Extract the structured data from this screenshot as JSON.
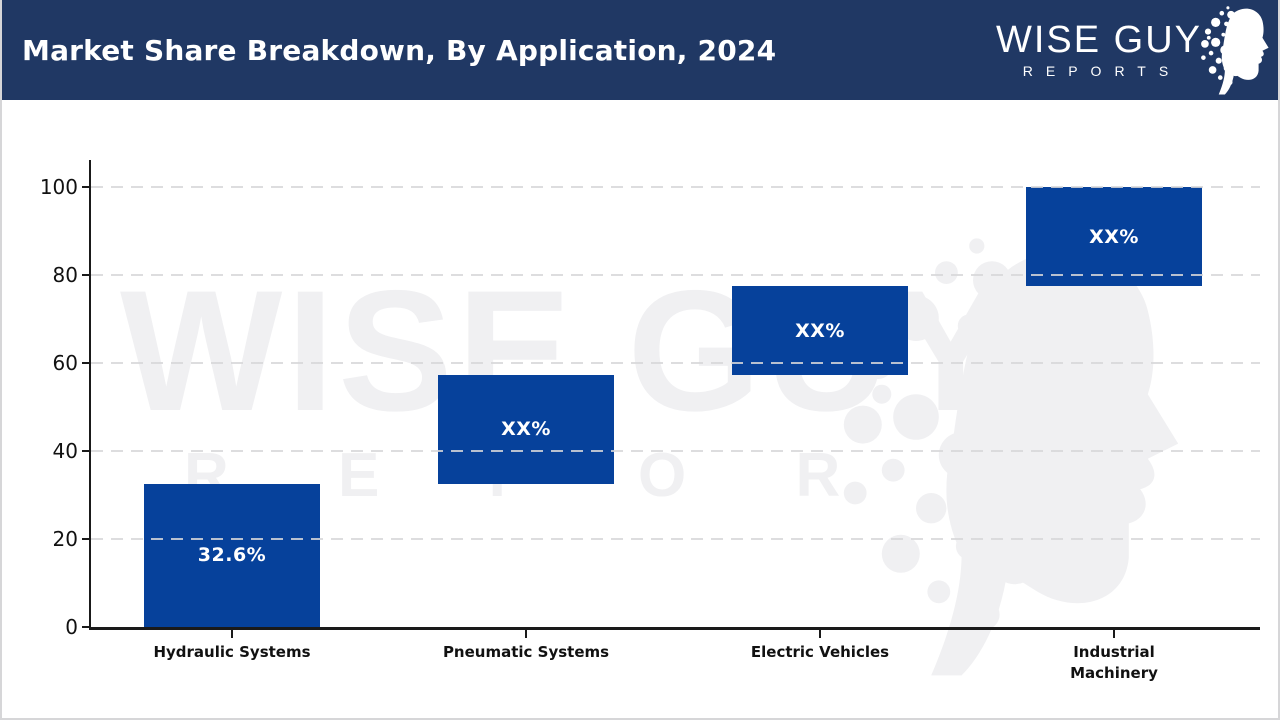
{
  "header": {
    "title": "Market Share Breakdown, By Application, 2024",
    "logo": {
      "line1": "WISE GUY",
      "line2": "REPORTS",
      "icon": "dotted-face-profile"
    },
    "background_color": "#203864"
  },
  "watermark": {
    "line1": "WISE GUY",
    "line2": "R E P O R T S",
    "icon": "dotted-face-profile",
    "color": "#f0f0f2"
  },
  "chart_data": {
    "type": "bar",
    "subtype": "waterfall",
    "title": "Market Share Breakdown, By Application, 2024",
    "categories": [
      "Hydraulic Systems",
      "Pneumatic Systems",
      "Electric Vehicles",
      "Industrial Machinery"
    ],
    "tick_labels": [
      "Hydraulic Systems",
      "Pneumatic Systems",
      "Electric Vehicles",
      "Industrial\nMachinery"
    ],
    "segments": [
      {
        "category": "Hydraulic Systems",
        "start": 0,
        "end": 32.6,
        "value_label": "32.6%"
      },
      {
        "category": "Pneumatic Systems",
        "start": 32.6,
        "end": 57.2,
        "value_label": "XX%"
      },
      {
        "category": "Electric Vehicles",
        "start": 57.2,
        "end": 77.5,
        "value_label": "XX%"
      },
      {
        "category": "Industrial Machinery",
        "start": 77.5,
        "end": 100,
        "value_label": "XX%"
      }
    ],
    "xlabel": "",
    "ylabel": "",
    "ylim": [
      0,
      106
    ],
    "yticks": [
      0,
      20,
      40,
      60,
      80,
      100
    ],
    "grid": "horizontal-dashed",
    "legend": "none",
    "bar_color": "#06419b",
    "bar_label_color": "#ffffff",
    "axis_color": "#1a1a1a"
  }
}
